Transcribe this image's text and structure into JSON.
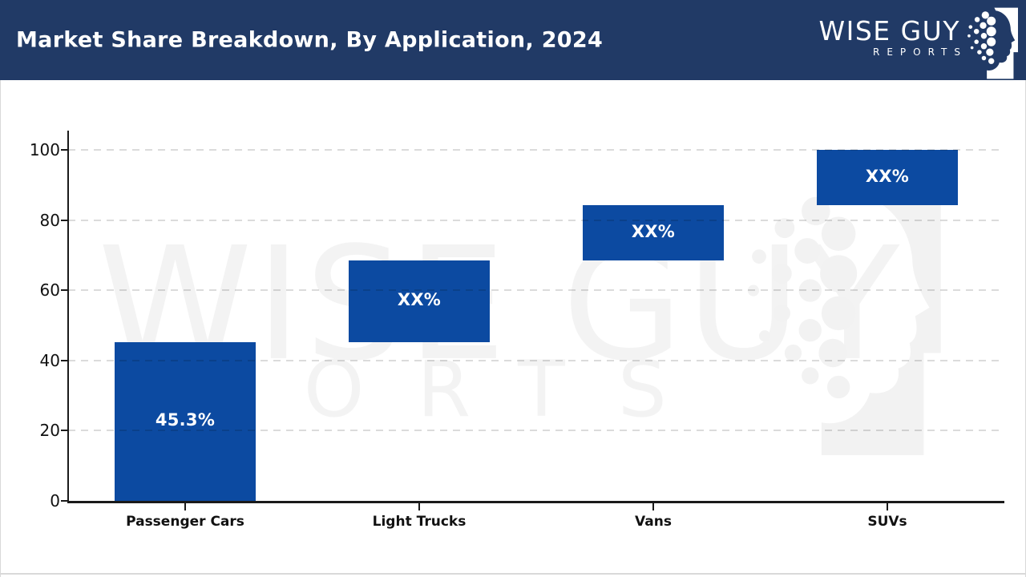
{
  "header": {
    "title": "Market Share Breakdown, By Application, 2024",
    "logo": {
      "brand_top": "WISE GUY",
      "brand_bottom": "REPORTS"
    }
  },
  "watermark": {
    "brand_top": "WISE GUY",
    "brand_bottom": "PORTS"
  },
  "colors": {
    "header_bg": "#213a66",
    "bar": "#0c4aa1",
    "grid": "#dcdcdc",
    "axis": "#1a1a1a",
    "bar_label_text": "#ffffff",
    "watermark": "#f3f3f3",
    "page_border": "#d9d9d9"
  },
  "chart_data": {
    "type": "bar",
    "variant": "stacked-waterfall",
    "title": "Market Share Breakdown, By Application, 2024",
    "xlabel": "",
    "ylabel": "",
    "ylim": [
      0,
      100
    ],
    "yticks": [
      0,
      20,
      40,
      60,
      80,
      100
    ],
    "grid": "horizontal-dashed",
    "legend": "none",
    "bar_color": "#0c4aa1",
    "categories": [
      "Passenger Cars",
      "Light Trucks",
      "Vans",
      "SUVs"
    ],
    "bars": [
      {
        "category": "Passenger Cars",
        "start": 0,
        "end": 45.3,
        "label": "45.3%"
      },
      {
        "category": "Light Trucks",
        "start": 45.3,
        "end": 68.5,
        "label": "XX%"
      },
      {
        "category": "Vans",
        "start": 68.5,
        "end": 84.2,
        "label": "XX%"
      },
      {
        "category": "SUVs",
        "start": 84.2,
        "end": 100,
        "label": "XX%"
      }
    ]
  }
}
